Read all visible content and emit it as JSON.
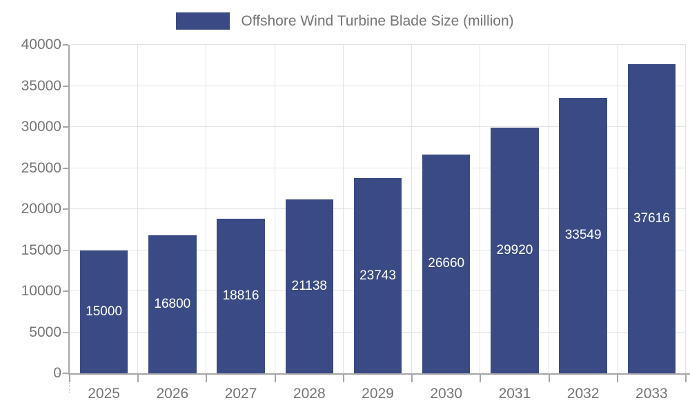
{
  "chart_data": {
    "type": "bar",
    "title": "Offshore Wind Turbine Blade Size (million)",
    "legend_position": "top",
    "categories": [
      "2025",
      "2026",
      "2027",
      "2028",
      "2029",
      "2030",
      "2031",
      "2032",
      "2033"
    ],
    "values": [
      15000,
      16800,
      18816,
      21138,
      23743,
      26660,
      29920,
      33549,
      37616
    ],
    "value_labels": [
      "15000",
      "16800",
      "18816",
      "21138",
      "23743",
      "26660",
      "29920",
      "33549",
      "37616"
    ],
    "y_ticks": [
      0,
      5000,
      10000,
      15000,
      20000,
      25000,
      30000,
      35000,
      40000
    ],
    "y_tick_labels": [
      "0",
      "5000",
      "10000",
      "15000",
      "20000",
      "25000",
      "30000",
      "35000",
      "40000"
    ],
    "ylim": [
      0,
      40000
    ],
    "xlabel": "",
    "ylabel": "",
    "grid": true,
    "colors": {
      "bar": "#3a4a84",
      "gridline": "#e3e3e3",
      "axis_line": "#a6a6a6",
      "tick_mark": "#a6a6a6",
      "tick_text": "#757575",
      "legend_text": "#757575",
      "bar_label_text": "#ffffff",
      "background": "#ffffff"
    }
  }
}
